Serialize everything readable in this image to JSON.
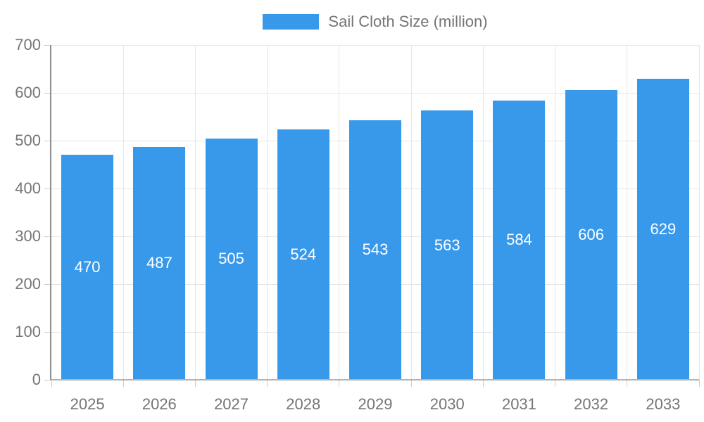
{
  "legend": {
    "label": "Sail Cloth Size (million)"
  },
  "chart_data": {
    "type": "bar",
    "title": "Sail Cloth Size (million)",
    "categories": [
      "2025",
      "2026",
      "2027",
      "2028",
      "2029",
      "2030",
      "2031",
      "2032",
      "2033"
    ],
    "values": [
      470,
      487,
      505,
      524,
      543,
      563,
      584,
      606,
      629
    ],
    "xlabel": "",
    "ylabel": "",
    "ylim": [
      0,
      700
    ],
    "yticks": [
      0,
      100,
      200,
      300,
      400,
      500,
      600,
      700
    ],
    "grid": true,
    "legend_position": "top-center",
    "value_labels": "inside-center",
    "colors": {
      "bar": "#3899EB",
      "value_label": "#ffffff",
      "axis_text": "#757575",
      "gridline": "#e6e6e6",
      "axis_line": "#8f8f8f",
      "baseline": "#b3b3b3",
      "tick": "#cccccc",
      "background": "#ffffff"
    }
  }
}
